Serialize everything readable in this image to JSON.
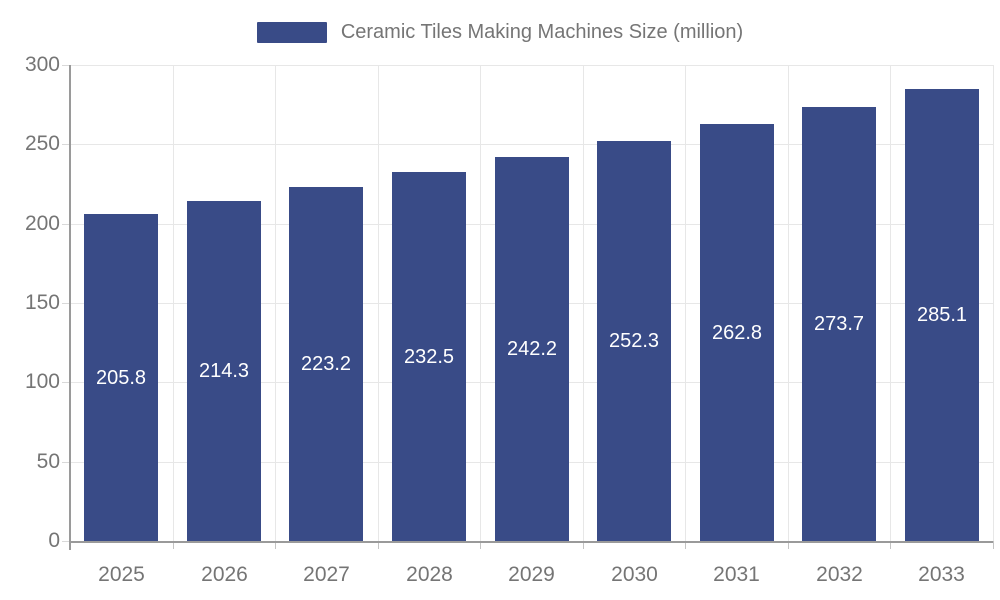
{
  "legend": {
    "label": "Ceramic Tiles Making Machines Size (million)",
    "swatch_color": "#394B87"
  },
  "chart_data": {
    "type": "bar",
    "title": "Ceramic Tiles Making Machines Size (million)",
    "series_name": "Ceramic Tiles Making Machines Size (million)",
    "categories": [
      "2025",
      "2026",
      "2027",
      "2028",
      "2029",
      "2030",
      "2031",
      "2032",
      "2033"
    ],
    "values": [
      205.8,
      214.3,
      223.2,
      232.5,
      242.2,
      252.3,
      262.8,
      273.7,
      285.1
    ],
    "xlabel": "",
    "ylabel": "",
    "ylim": [
      0,
      300
    ],
    "yticks": [
      0,
      50,
      100,
      150,
      200,
      250,
      300
    ],
    "grid": true,
    "legend_position": "top",
    "value_labels": "inside-center",
    "colors": {
      "bar": "#394B87",
      "grid_line": "#e7e7e7",
      "axis_line": "#9a9a9a",
      "tick_label": "#757575",
      "value_label": "#ffffff",
      "background": "#ffffff"
    }
  }
}
